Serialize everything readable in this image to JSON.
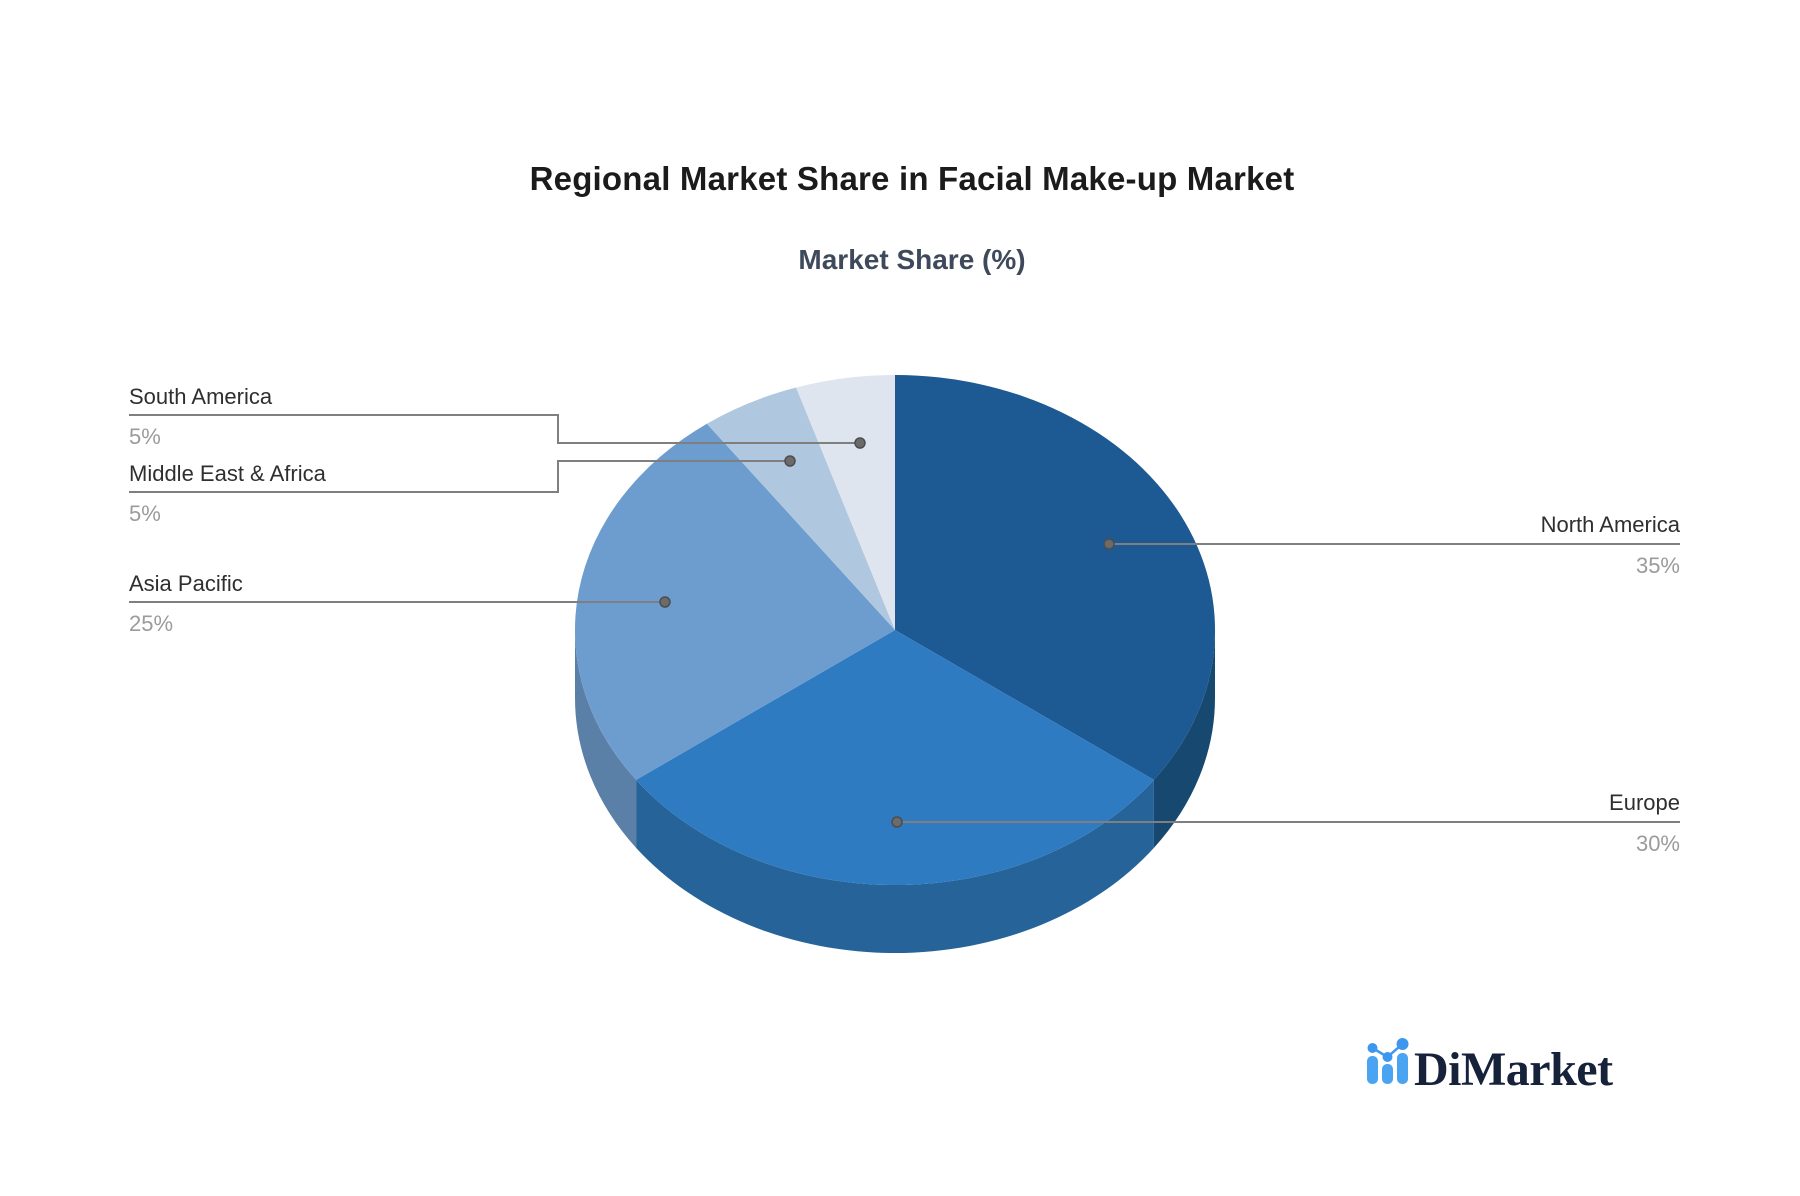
{
  "chart_data": {
    "type": "pie",
    "style": "3d",
    "title": "Regional Market Share in Facial Make-up Market",
    "subtitle": "Market Share (%)",
    "unit": "%",
    "start_angle_deg": 0,
    "direction": "clockwise",
    "legend": "none",
    "slices": [
      {
        "label": "North America",
        "value": 35,
        "display": "35%",
        "color": "#1d5992",
        "side_color": "#174970",
        "label_side": "right"
      },
      {
        "label": "Europe",
        "value": 30,
        "display": "30%",
        "color": "#2e7bc2",
        "side_color": "#256398",
        "label_side": "right"
      },
      {
        "label": "Asia Pacific",
        "value": 25,
        "display": "25%",
        "color": "#6d9ccf",
        "side_color": "#5a80a8",
        "label_side": "left"
      },
      {
        "label": "Middle East & Africa",
        "value": 5,
        "display": "5%",
        "color": "#b0c7e0",
        "side_color": "#8fa6bd",
        "label_side": "left"
      },
      {
        "label": "South America",
        "value": 5,
        "display": "5%",
        "color": "#dee5ee",
        "side_color": "#b8c2cd",
        "label_side": "left"
      }
    ],
    "label_text_color": "#2f2f2f",
    "value_text_color": "#9b9b9b",
    "connector_color": "#7f7f7f"
  },
  "watermark": {
    "text": "DiMarket",
    "icon": "bar-chart-sparkline-icon",
    "icon_color": "#4ba4f2",
    "text_color": "#16213a"
  }
}
